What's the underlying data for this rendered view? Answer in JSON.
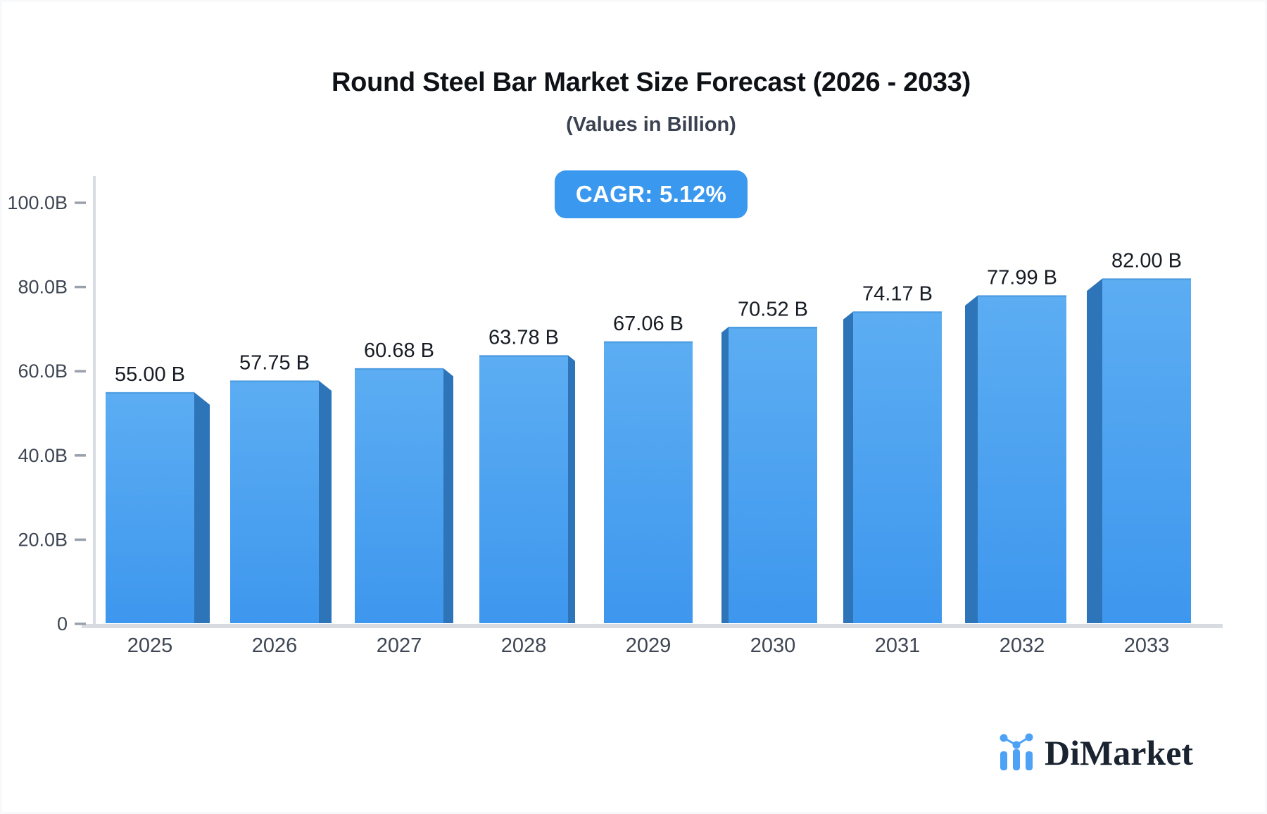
{
  "header": {
    "cagr_badge": "CAGR: 5.12%"
  },
  "chart_data": {
    "type": "bar",
    "title": "Round Steel Bar Market Size Forecast (2026 - 2033)",
    "subtitle": "(Values in Billion)",
    "annotation": "CAGR: 5.12%",
    "categories": [
      "2025",
      "2026",
      "2027",
      "2028",
      "2029",
      "2030",
      "2031",
      "2032",
      "2033"
    ],
    "values": [
      55.0,
      57.75,
      60.68,
      63.78,
      67.06,
      70.52,
      74.17,
      77.99,
      82.0
    ],
    "value_labels": [
      "55.00 B",
      "57.75 B",
      "60.68 B",
      "63.78 B",
      "67.06 B",
      "70.52 B",
      "74.17 B",
      "77.99 B",
      "82.00 B"
    ],
    "xlabel": "",
    "ylabel": "",
    "ylim": [
      0,
      100
    ],
    "yticks": [
      {
        "value": 0,
        "label": "0"
      },
      {
        "value": 20,
        "label": "20.0B"
      },
      {
        "value": 40,
        "label": "40.0B"
      },
      {
        "value": 60,
        "label": "60.0B"
      },
      {
        "value": 80,
        "label": "80.0B"
      },
      {
        "value": 100,
        "label": "100.0B"
      }
    ],
    "grid": false,
    "legend": "none",
    "bar_style": "3d-perspective"
  },
  "colors": {
    "bar_face_top": "#5cadf2",
    "bar_face_bottom": "#3e97ee",
    "bar_top_edge": "#4f9de2",
    "bar_side": "#2e74b8",
    "axis_line": "#d8dce2",
    "tick_mark": "#9aa1ab",
    "axis_label": "#3e4653",
    "value_label": "#171c24",
    "badge_bg": "#3b98ef",
    "logo_blue": "#4da2f5",
    "logo_text": "#1a2330"
  },
  "branding": {
    "name": "DiMarket",
    "icon": "bar-chart-logo-icon"
  }
}
